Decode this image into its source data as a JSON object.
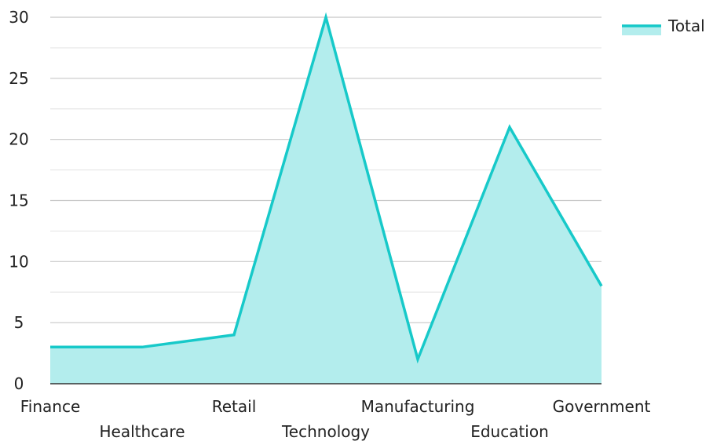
{
  "chart_data": {
    "type": "area",
    "categories": [
      "Finance",
      "Healthcare",
      "Retail",
      "Technology",
      "Manufacturing",
      "Education",
      "Government"
    ],
    "series": [
      {
        "name": "Total",
        "values": [
          3,
          3,
          4,
          30,
          2,
          21,
          8
        ]
      }
    ],
    "ylim": [
      0,
      30
    ],
    "yticks": [
      0,
      5,
      10,
      15,
      20,
      25,
      30
    ],
    "grid": true,
    "legend": "top-right",
    "colors": {
      "line": "#17c9c9",
      "fill": "#b3eded",
      "grid": "#d4d4d4",
      "axis": "#333333"
    }
  }
}
